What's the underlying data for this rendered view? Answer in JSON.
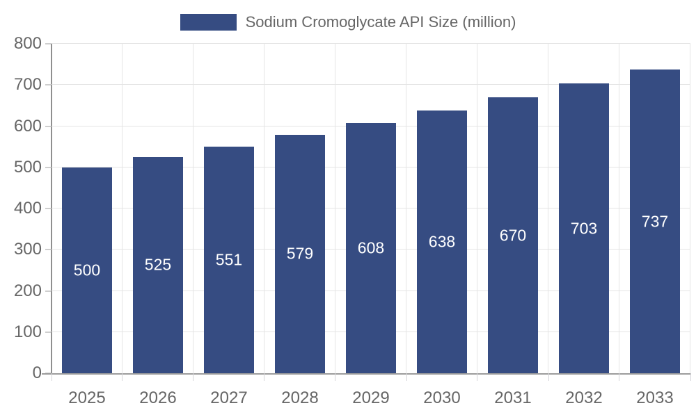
{
  "chart_data": {
    "type": "bar",
    "title": "Sodium Cromoglycate API Size (million)",
    "categories": [
      "2025",
      "2026",
      "2027",
      "2028",
      "2029",
      "2030",
      "2031",
      "2032",
      "2033"
    ],
    "values": [
      500,
      525,
      551,
      579,
      608,
      638,
      670,
      703,
      737
    ],
    "xlabel": "",
    "ylabel": "",
    "ylim": [
      0,
      800
    ],
    "yticks": [
      0,
      100,
      200,
      300,
      400,
      500,
      600,
      700,
      800
    ],
    "grid": true,
    "legend_position": "top",
    "legend_label": "Sodium Cromoglycate API Size (million)",
    "colors": {
      "bar": "#364c82",
      "value_label": "#ffffff",
      "axis_text": "#666666",
      "grid_line": "#e4e4e4",
      "axis_line": "#9c9c9c",
      "background": "#ffffff"
    }
  }
}
